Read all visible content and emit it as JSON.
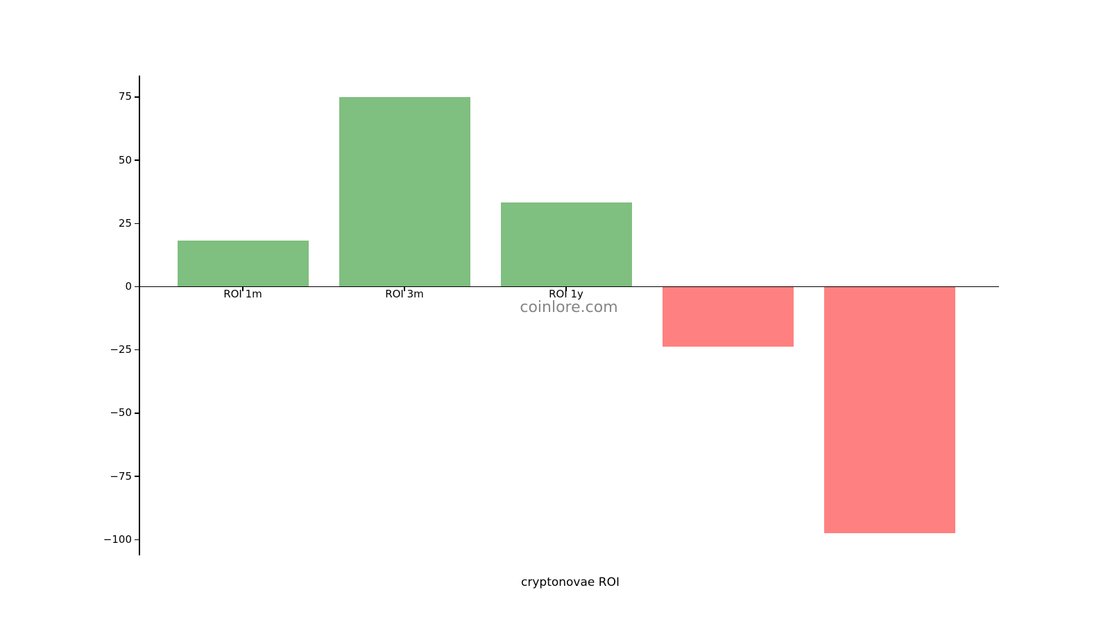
{
  "page": {
    "background": "#ffffff"
  },
  "watermark": {
    "text": "coinlore.com",
    "color": "#868686"
  },
  "chart_data": {
    "type": "bar",
    "title": "",
    "xlabel": "cryptonovae ROI",
    "ylabel": "",
    "categories": [
      "ROI 1m",
      "ROI 3m",
      "ROI 1y",
      "",
      ""
    ],
    "values": [
      18.1,
      75.0,
      33.2,
      -23.6,
      -97.4
    ],
    "positive_color": "#7fbf7f",
    "negative_color": "#ff8080",
    "axis_color": "#000000",
    "tick_label_color": "#000000",
    "yticks": [
      75,
      50,
      25,
      0,
      -25,
      -50,
      -75,
      -100
    ],
    "ytick_labels": [
      "75",
      "50",
      "25",
      "0",
      "−25",
      "−50",
      "−75",
      "−100"
    ],
    "ylim": [
      -106.2,
      83.6
    ],
    "grid": false,
    "legend": false
  }
}
